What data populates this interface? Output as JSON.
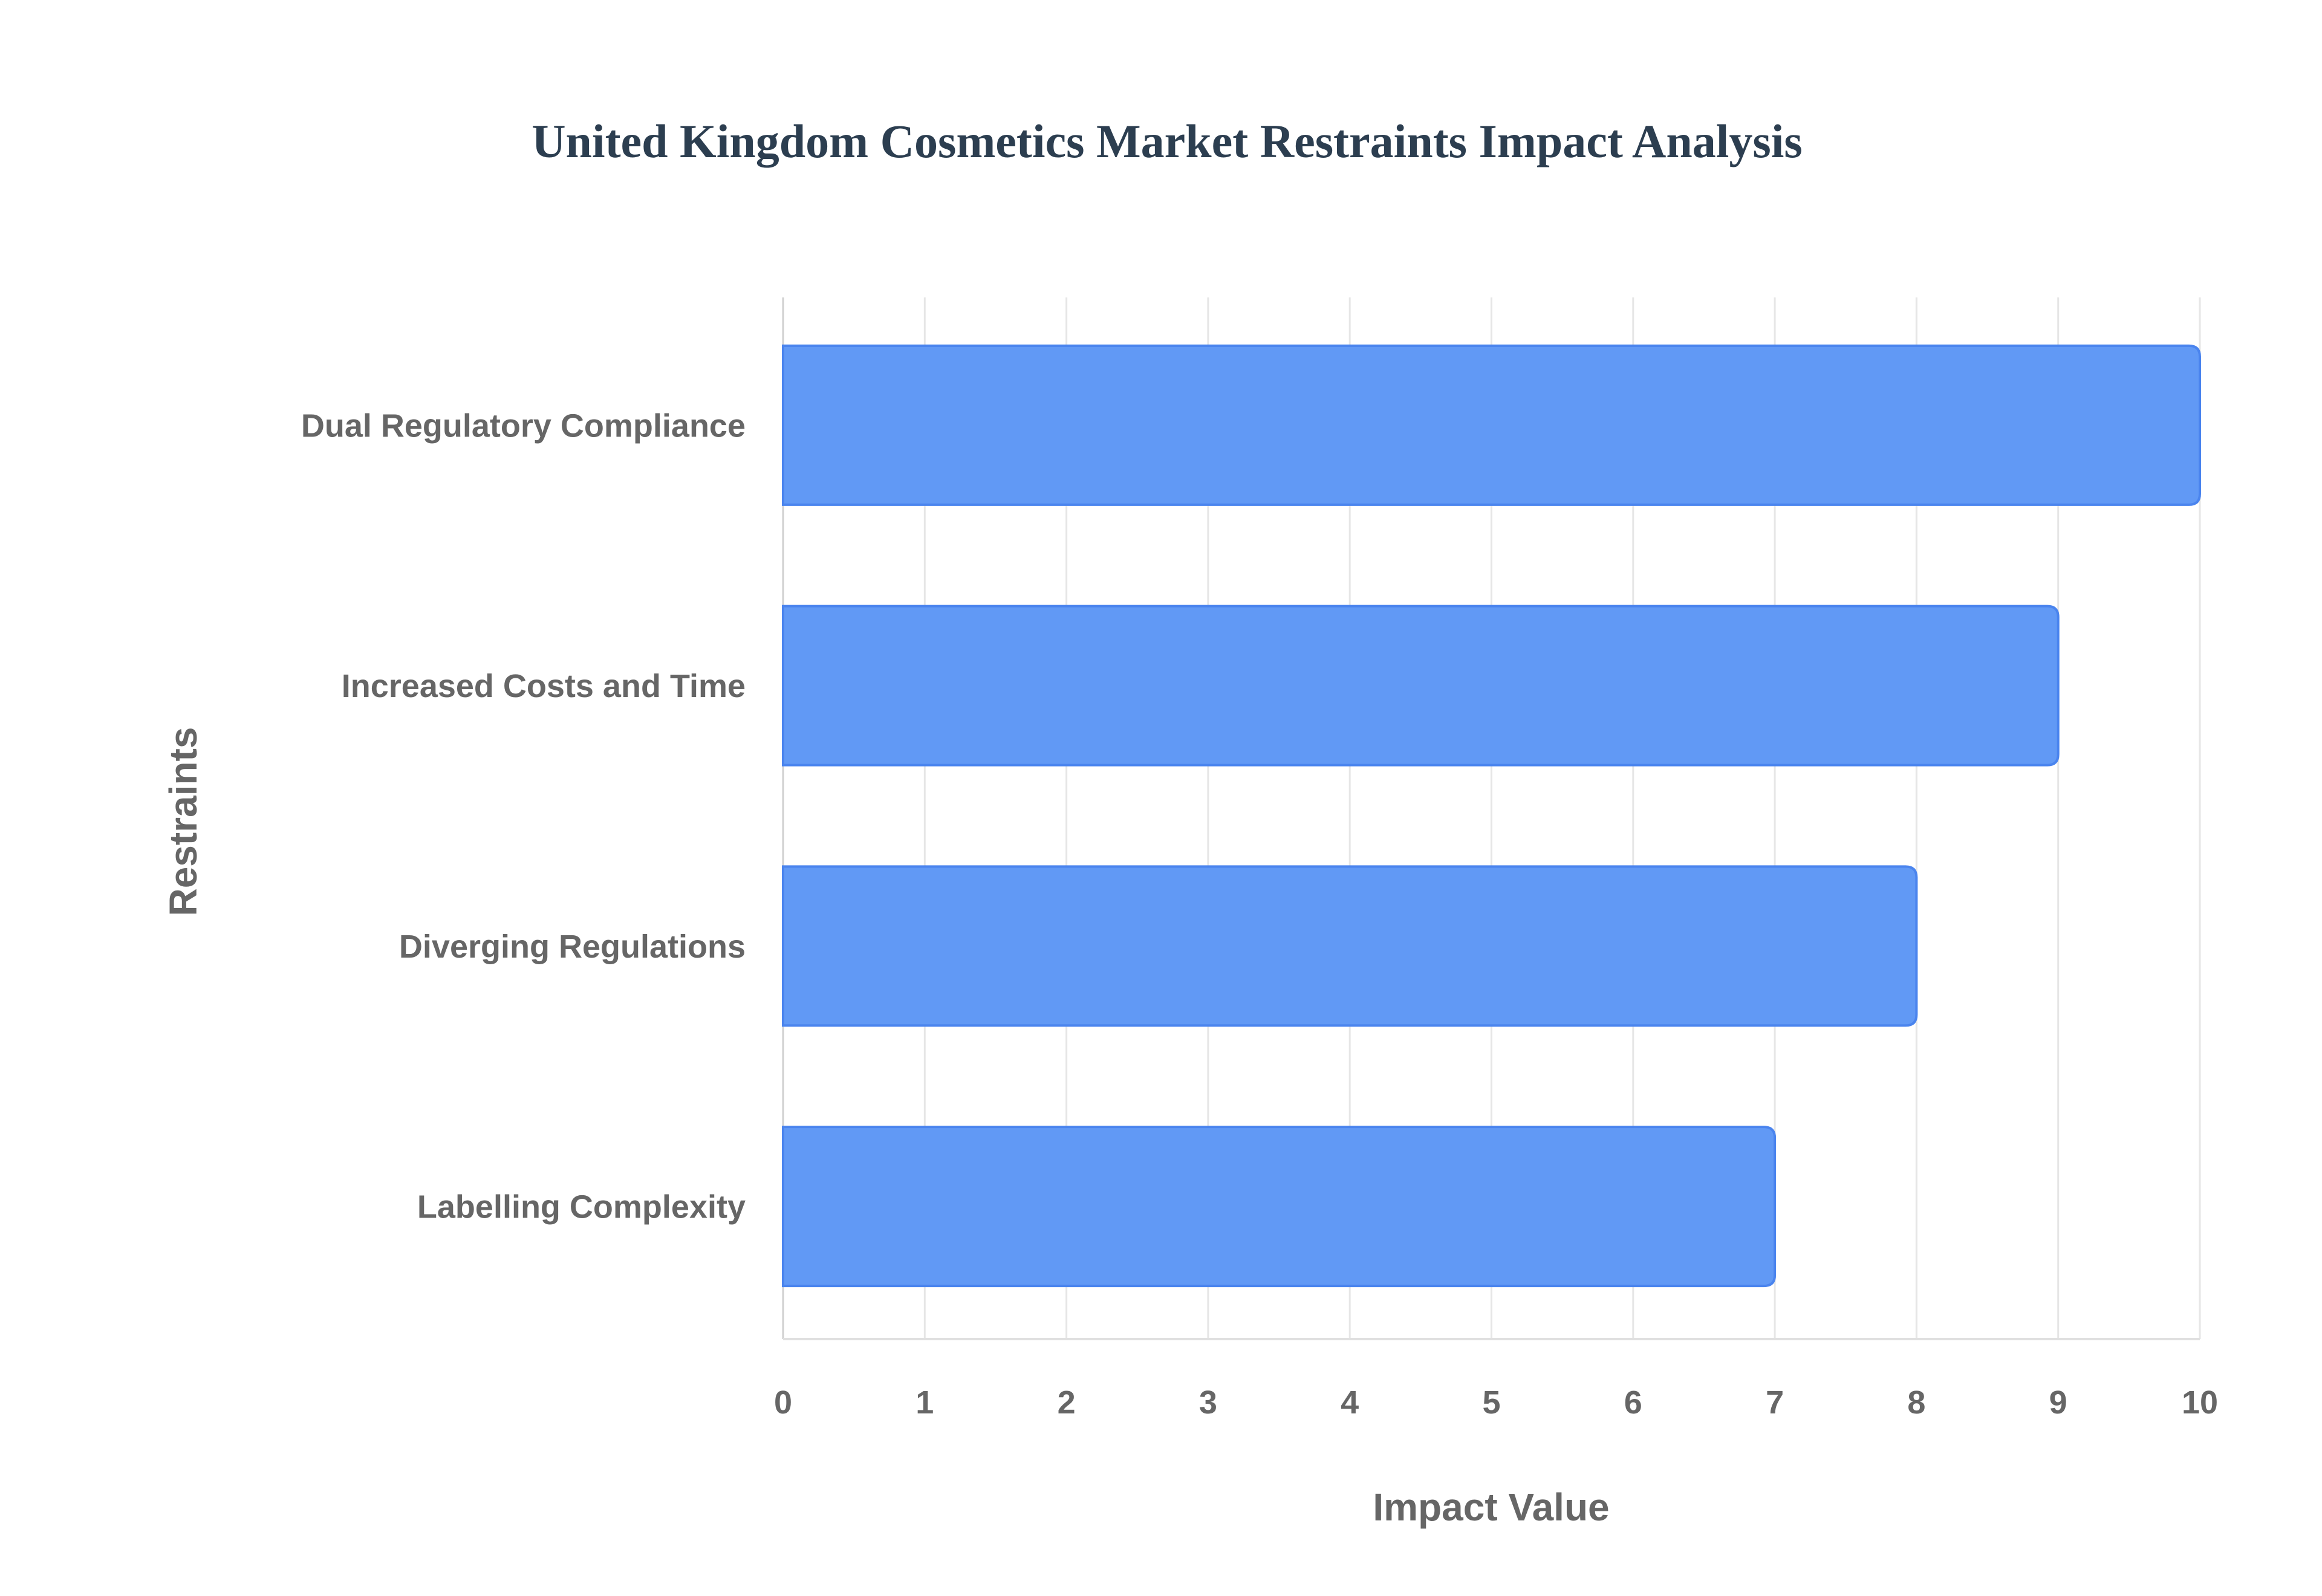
{
  "chart_data": {
    "type": "bar",
    "orientation": "horizontal",
    "title": "United Kingdom Cosmetics Market Restraints Impact Analysis",
    "xlabel": "Impact Value",
    "ylabel": "Restraints",
    "categories": [
      "Dual Regulatory Compliance",
      "Increased Costs and Time",
      "Diverging Regulations",
      "Labelling Complexity"
    ],
    "values": [
      10,
      9,
      8,
      7
    ],
    "xlim": [
      0,
      10
    ],
    "xticks": [
      "0",
      "1",
      "2",
      "3",
      "4",
      "5",
      "6",
      "7",
      "8",
      "9",
      "10"
    ],
    "grid": true,
    "bar_color": "#6199f5",
    "bar_border_color": "#4a84ee"
  }
}
